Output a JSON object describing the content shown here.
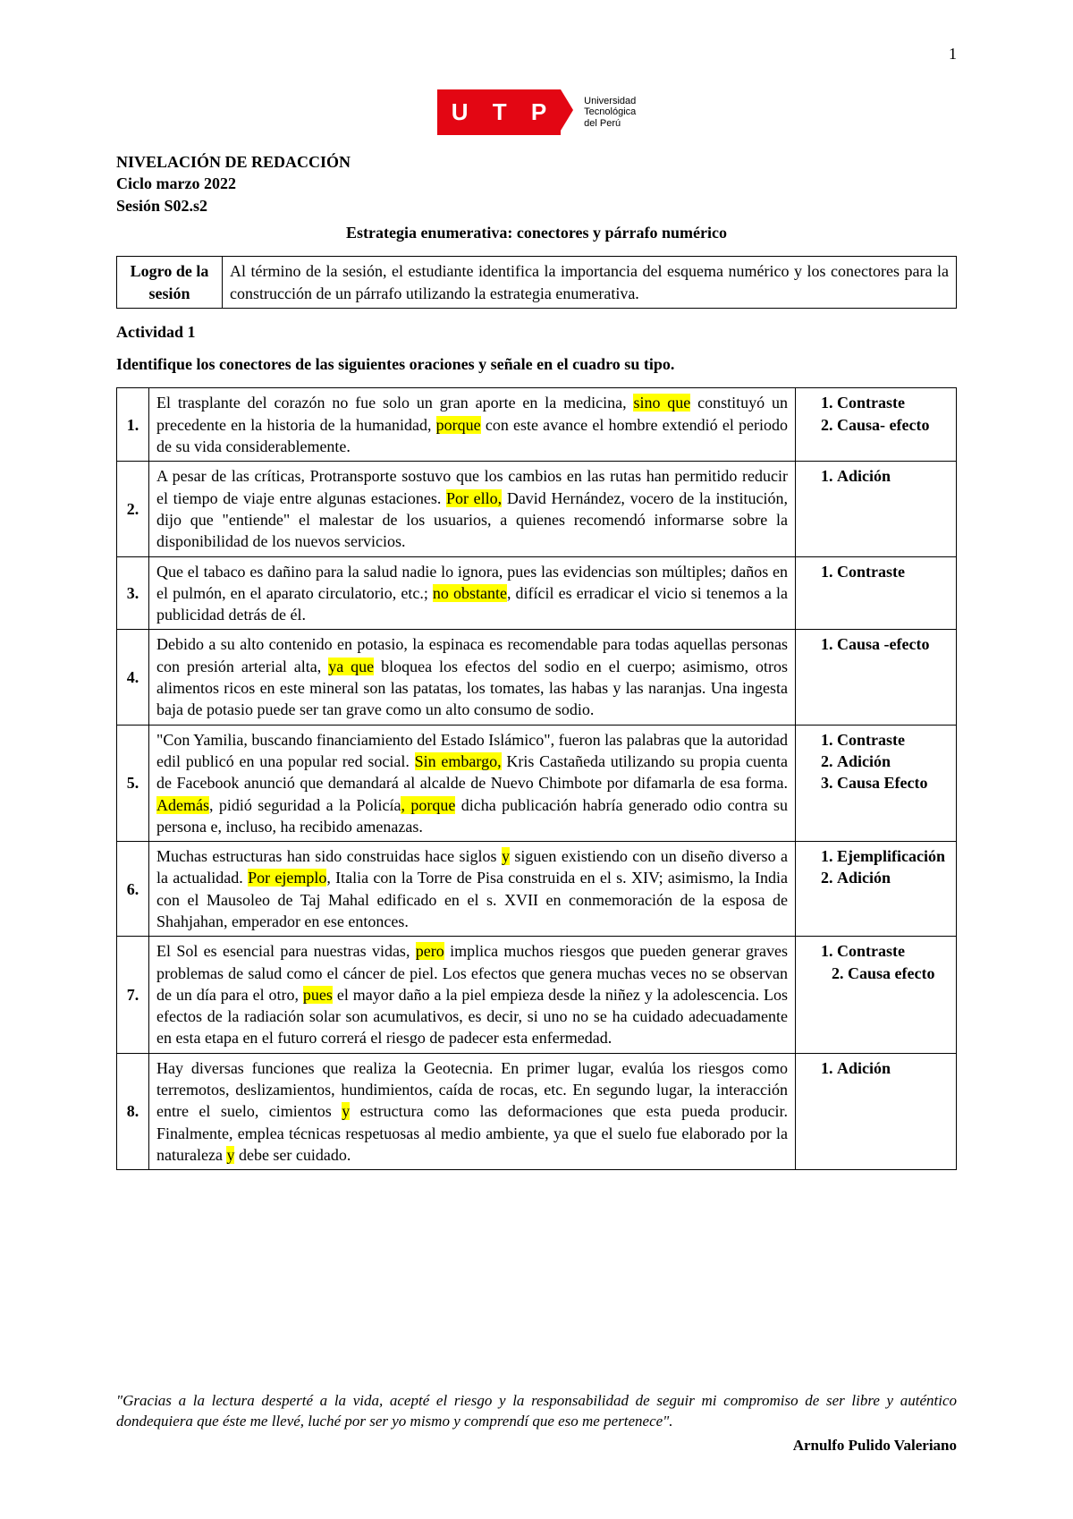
{
  "page_number": "1",
  "logo": {
    "letters": "U T P",
    "tagline": "Universidad\nTecnológica\ndel Perú"
  },
  "header": {
    "course": "NIVELACIÓN DE REDACCIÓN",
    "cycle": "Ciclo marzo 2022",
    "session": "Sesión S02.s2",
    "title": "Estrategia enumerativa: conectores y párrafo numérico"
  },
  "logro": {
    "label": "Logro de la sesión",
    "text": "Al término de la sesión, el estudiante identifica la importancia del esquema numérico y los conectores para la construcción de un párrafo utilizando la estrategia enumerativa."
  },
  "activity": {
    "heading": "Actividad 1",
    "instruction": "Identifique los conectores de las siguientes oraciones y señale en el cuadro su tipo."
  },
  "rows": [
    {
      "n": "1.",
      "segments": [
        {
          "t": "El trasplante del corazón no fue solo un gran aporte en la medicina, "
        },
        {
          "t": "sino que",
          "hl": true
        },
        {
          "t": " constituyó un precedente en la historia de la humanidad, "
        },
        {
          "t": "porque",
          "hl": true
        },
        {
          "t": " con este avance el hombre extendió el periodo de su vida considerablemente."
        }
      ],
      "types": [
        "Contraste",
        "Causa- efecto"
      ]
    },
    {
      "n": "2.",
      "segments": [
        {
          "t": "A pesar de las críticas, Protransporte sostuvo que los cambios en las rutas han permitido reducir el tiempo de viaje entre algunas estaciones. "
        },
        {
          "t": "Por ello,",
          "hl": true
        },
        {
          "t": " David Hernández, vocero de la institución, dijo que \"entiende\" el malestar de los usuarios, a quienes recomendó informarse sobre la disponibilidad de los nuevos servicios."
        }
      ],
      "types": [
        "Adición"
      ]
    },
    {
      "n": "3.",
      "segments": [
        {
          "t": "Que el tabaco es dañino para la salud nadie lo ignora, pues las evidencias son múltiples; daños en el pulmón, en el aparato circulatorio, etc.; "
        },
        {
          "t": "no obstante",
          "hl": true
        },
        {
          "t": ", difícil es erradicar el vicio si tenemos a la publicidad detrás de él."
        }
      ],
      "types": [
        "Contraste"
      ]
    },
    {
      "n": "4.",
      "segments": [
        {
          "t": "Debido a su alto contenido en potasio, la espinaca es recomendable para todas aquellas personas con presión arterial alta, "
        },
        {
          "t": "ya que",
          "hl": true
        },
        {
          "t": " bloquea los efectos del sodio en el cuerpo; asimismo, otros alimentos ricos en este mineral son las patatas, los tomates, las habas y las naranjas. Una ingesta baja de potasio puede ser tan grave como un alto consumo de sodio."
        }
      ],
      "types": [
        "Causa -efecto"
      ]
    },
    {
      "n": "5.",
      "segments": [
        {
          "t": "\"Con Yamilia, buscando financiamiento del Estado Islámico\", fueron las palabras que la autoridad edil publicó en una popular red social. "
        },
        {
          "t": "Sin embargo,",
          "hl": true
        },
        {
          "t": " Kris Castañeda utilizando su propia cuenta de Facebook anunció que demandará al alcalde de Nuevo Chimbote por difamarla de esa forma. "
        },
        {
          "t": "Además",
          "hl": true
        },
        {
          "t": ", pidió seguridad a la Policía"
        },
        {
          "t": ", porque",
          "hl": true
        },
        {
          "t": " dicha publicación habría generado odio contra su persona e, incluso, ha recibido amenazas."
        }
      ],
      "types": [
        "Contraste",
        "Adición",
        "Causa Efecto"
      ]
    },
    {
      "n": "6.",
      "segments": [
        {
          "t": "Muchas estructuras han sido construidas hace siglos "
        },
        {
          "t": "y",
          "hl": true
        },
        {
          "t": " siguen existiendo con un diseño diverso a la actualidad. "
        },
        {
          "t": "Por ejemplo",
          "hl": true
        },
        {
          "t": ", Italia con la Torre de Pisa construida en el s. XIV; asimismo, la India con el Mausoleo de Taj Mahal edificado en el s. XVII en conmemoración de la esposa de Shahjahan, emperador en ese entonces."
        }
      ],
      "types": [
        "Ejemplificación",
        "Adición"
      ]
    },
    {
      "n": "7.",
      "segments": [
        {
          "t": "El Sol es esencial para nuestras vidas, "
        },
        {
          "t": "pero",
          "hl": true
        },
        {
          "t": " implica muchos riesgos que pueden generar graves problemas de salud como el cáncer de piel. Los efectos que genera muchas veces no se observan de un día para el otro, "
        },
        {
          "t": "pues",
          "hl": true
        },
        {
          "t": " el mayor daño a la piel empieza desde la niñez y la adolescencia. Los efectos de la radiación solar son acumulativos, es decir, si uno no se ha cuidado adecuadamente en esta etapa en el futuro correrá el riesgo de padecer esta enfermedad."
        }
      ],
      "types": [
        "Contraste",
        "2. Causa efecto"
      ],
      "types_mode": "first_only_numbered"
    },
    {
      "n": "8.",
      "segments": [
        {
          "t": "Hay diversas funciones que realiza la Geotecnia. En primer lugar, evalúa los riesgos como terremotos, deslizamientos, hundimientos, caída de rocas, etc. En segundo lugar, la interacción entre el suelo, cimientos "
        },
        {
          "t": "y",
          "hl": true
        },
        {
          "t": " estructura como las deformaciones que esta pueda producir. Finalmente, emplea técnicas respetuosas al medio ambiente, ya que el suelo fue elaborado por la naturaleza "
        },
        {
          "t": "y",
          "hl": true
        },
        {
          "t": " debe ser cuidado."
        }
      ],
      "types": [
        "Adición"
      ]
    }
  ],
  "footer": {
    "quote": "\"Gracias a la lectura desperté a la vida, acepté el riesgo y la responsabilidad de seguir mi compromiso de ser libre y auténtico dondequiera que éste me llevé, luché por ser yo mismo y comprendí que eso me pertenece\".",
    "author": "Arnulfo Pulido Valeriano"
  }
}
